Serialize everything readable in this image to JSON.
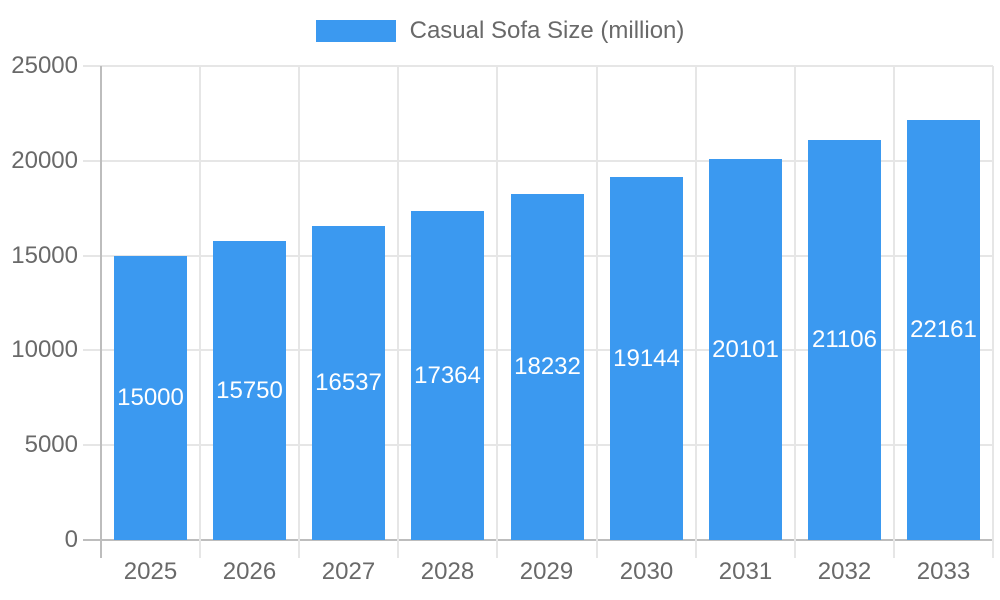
{
  "legend": {
    "label": "Casual Sofa Size (million)"
  },
  "colors": {
    "bar": "#3B99F0",
    "grid": "#e6e6e6",
    "axis": "#bdbdbd",
    "text": "#696969",
    "value_label": "#ffffff",
    "background": "#ffffff"
  },
  "chart_data": {
    "type": "bar",
    "title": "Casual Sofa Size (million)",
    "categories": [
      "2025",
      "2026",
      "2027",
      "2028",
      "2029",
      "2030",
      "2031",
      "2032",
      "2033"
    ],
    "values": [
      15000,
      15750,
      16537,
      17364,
      18232,
      19144,
      20101,
      21106,
      22161
    ],
    "series_name": "Casual Sofa Size (million)",
    "xlabel": "",
    "ylabel": "",
    "ylim": [
      0,
      25000
    ],
    "yticks": [
      0,
      5000,
      10000,
      15000,
      20000,
      25000
    ],
    "grid": true,
    "legend_position": "top",
    "bar_label_position": "center"
  }
}
